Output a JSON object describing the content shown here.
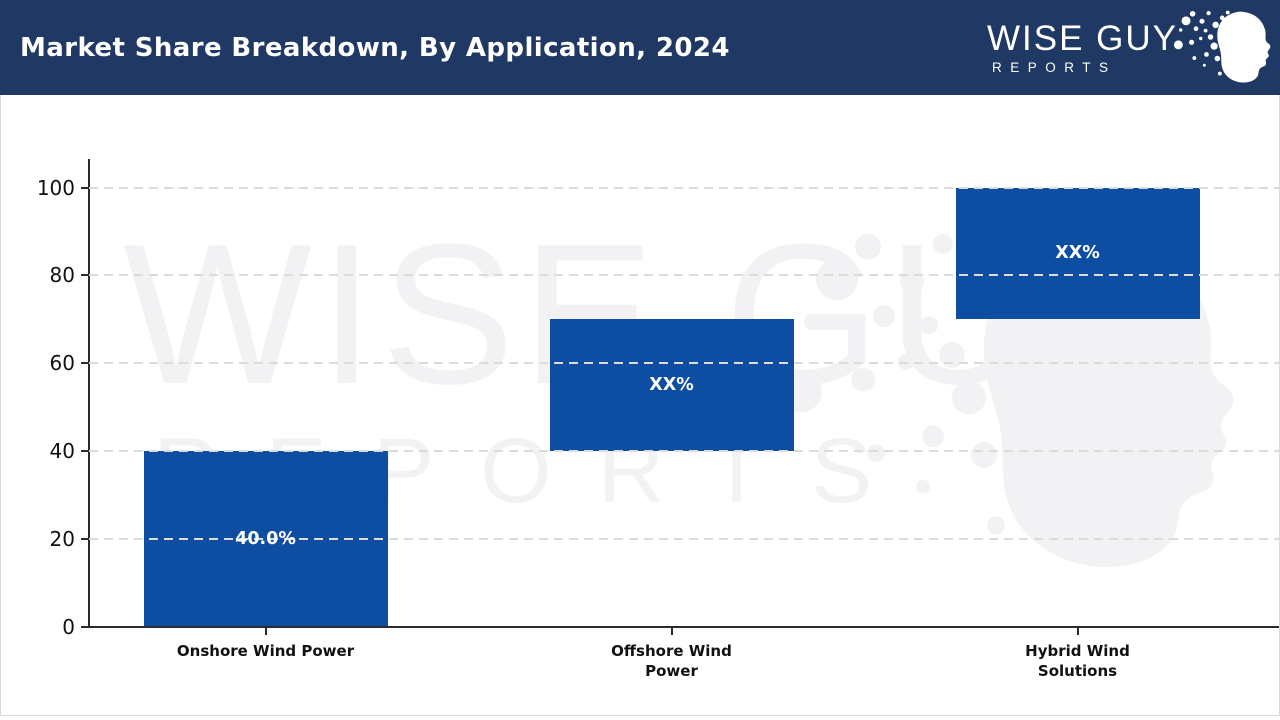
{
  "header": {
    "title": "Market Share Breakdown, By Application, 2024",
    "background_color": "#1F3864",
    "logo": {
      "line1": "WISE GUY",
      "line2": "REPORTS"
    }
  },
  "watermark": {
    "line1": "WISE GUY",
    "line2": "REPORTS"
  },
  "chart_data": {
    "type": "bar",
    "variant": "waterfall",
    "title": "Market Share Breakdown, By Application, 2024",
    "categories": [
      "Onshore Wind Power",
      "Offshore Wind Power",
      "Hybrid Wind Solutions"
    ],
    "category_label_lines": [
      [
        "Onshore Wind Power"
      ],
      [
        "Offshore Wind",
        "Power"
      ],
      [
        "Hybrid Wind",
        "Solutions"
      ]
    ],
    "segments": [
      {
        "category": "Onshore Wind Power",
        "start": 0,
        "end": 40,
        "label": "40.0%"
      },
      {
        "category": "Offshore Wind Power",
        "start": 40,
        "end": 70,
        "label": "XX%"
      },
      {
        "category": "Hybrid Wind Solutions",
        "start": 70,
        "end": 100,
        "label": "XX%"
      }
    ],
    "yticks": [
      0,
      20,
      40,
      60,
      80,
      100
    ],
    "ylim": [
      0,
      100
    ],
    "xlabel": "",
    "ylabel": "",
    "grid": {
      "horizontal": true,
      "style": "dashed",
      "color": "#dbdbdb",
      "drawn_above_bars": true
    },
    "bar_color": "#0d4da2",
    "bar_label_color": "#ffffff",
    "axis_color": "#2b2b2b",
    "legend": null
  }
}
